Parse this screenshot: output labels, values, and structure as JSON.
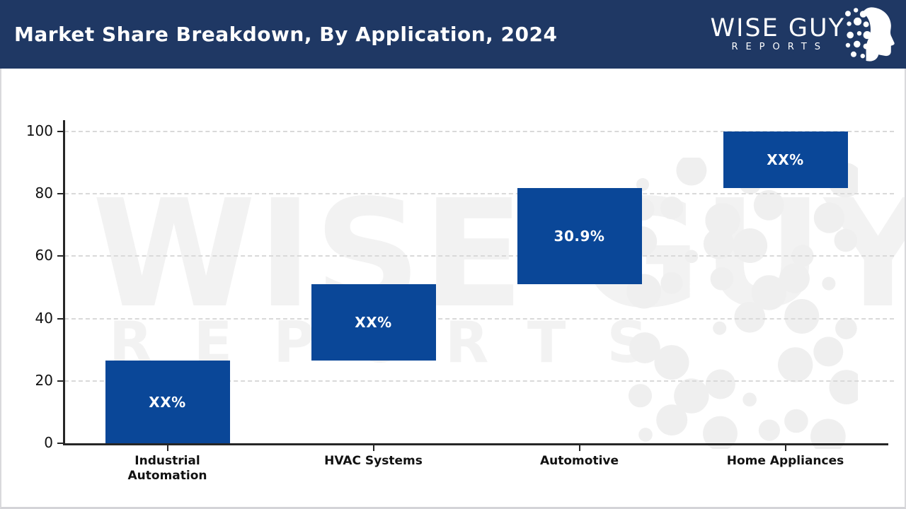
{
  "header": {
    "title": "Market Share Breakdown, By Application, 2024",
    "logo": {
      "line1": "WISE GUY",
      "line2": "REPORTS"
    }
  },
  "watermark": {
    "line1": "WISE GUY",
    "line2": "REPORTS"
  },
  "colors": {
    "header_bg": "#1f3864",
    "bar": "#0a4798",
    "grid": "#d9d9d9",
    "axis": "#262626",
    "bar_label_text": "#ffffff",
    "tick_text": "#111111",
    "watermark_text": "#f2f2f2",
    "watermark_dots": "#efefef",
    "frame": "#d9d9dc"
  },
  "chart_data": {
    "type": "bar",
    "subtype": "waterfall",
    "title": "Market Share Breakdown, By Application, 2024",
    "categories": [
      "Industrial\nAutomation",
      "HVAC Systems",
      "Automotive",
      "Home Appliances"
    ],
    "segments": [
      {
        "category": "Industrial Automation",
        "start": 0,
        "end": 26.5,
        "value": 26.5,
        "label": "XX%"
      },
      {
        "category": "HVAC Systems",
        "start": 26.5,
        "end": 51.0,
        "value": 24.5,
        "label": "XX%"
      },
      {
        "category": "Automotive",
        "start": 51.0,
        "end": 81.9,
        "value": 30.9,
        "label": "30.9%"
      },
      {
        "category": "Home Appliances",
        "start": 81.9,
        "end": 100,
        "value": 18.1,
        "label": "XX%"
      }
    ],
    "xlabel": "",
    "ylabel": "",
    "ylim": [
      0,
      100
    ],
    "yticks": [
      0,
      20,
      40,
      60,
      80,
      100
    ],
    "grid": "horizontal-dashed",
    "legend": "none"
  }
}
